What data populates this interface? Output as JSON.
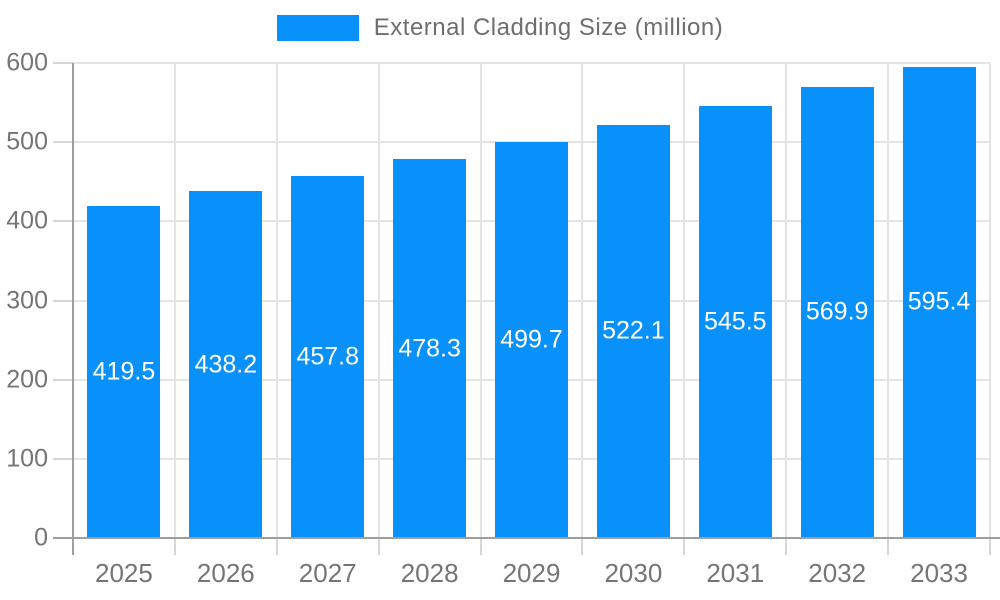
{
  "chart_data": {
    "type": "bar",
    "title": "External Cladding Size (million)",
    "legend": [
      "External Cladding Size (million)"
    ],
    "legend_position": "top-center",
    "categories": [
      "2025",
      "2026",
      "2027",
      "2028",
      "2029",
      "2030",
      "2031",
      "2032",
      "2033"
    ],
    "series": [
      {
        "name": "External Cladding Size (million)",
        "values": [
          419.5,
          438.2,
          457.8,
          478.3,
          499.7,
          522.1,
          545.5,
          569.9,
          595.4
        ]
      }
    ],
    "value_labels": [
      "419.5",
      "438.2",
      "457.8",
      "478.3",
      "499.7",
      "522.1",
      "545.5",
      "569.9",
      "595.4"
    ],
    "xlabel": "",
    "ylabel": "",
    "ylim": [
      0,
      600
    ],
    "yticks": [
      0,
      100,
      200,
      300,
      400,
      500,
      600
    ],
    "grid": true,
    "colors": {
      "bar": "#0991fb",
      "gridline": "#e4e4e4",
      "axis": "#9e9e9e",
      "tick": "#d6d6d6",
      "axis_text": "#757575",
      "legend_text": "#6e6e6e",
      "value_label_text": "#ffffff"
    }
  }
}
